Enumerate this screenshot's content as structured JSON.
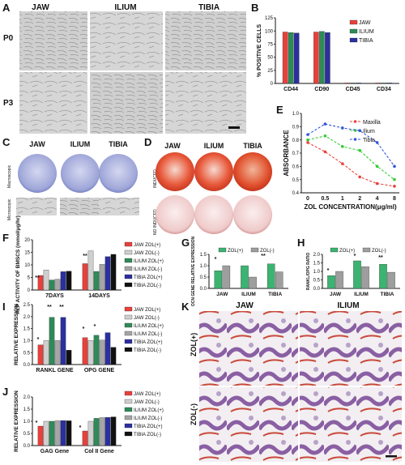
{
  "panels": {
    "A": {
      "label": "A",
      "cols": [
        "JAW",
        "ILIUM",
        "TIBIA"
      ],
      "rows": [
        "P0",
        "P3"
      ]
    },
    "B": {
      "label": "B"
    },
    "C": {
      "label": "C",
      "cols": [
        "JAW",
        "ILIUM",
        "TIBIA"
      ],
      "rows": [
        "Macroscopic",
        "Microscopic"
      ]
    },
    "D": {
      "label": "D",
      "cols": [
        "JAW",
        "ILIUM",
        "TIBIA"
      ],
      "rows": [
        "INDUCED",
        "NO INDUCED"
      ]
    },
    "E": {
      "label": "E"
    },
    "F": {
      "label": "F"
    },
    "G": {
      "label": "G"
    },
    "H": {
      "label": "H"
    },
    "I": {
      "label": "I"
    },
    "J": {
      "label": "J"
    },
    "K": {
      "label": "K",
      "cols": [
        "JAW",
        "ILIUM"
      ],
      "rows": [
        "ZOL(+)",
        "ZOL(-)"
      ]
    }
  },
  "colors": {
    "jaw_pos": "#e8413c",
    "jaw_neg": "#cfcfcf",
    "ilium_pos": "#2e8b57",
    "ilium_neg": "#a6a6a6",
    "tibia_pos": "#2b2fa0",
    "tibia_neg": "#111111",
    "zol_pos": "#3cb371",
    "zol_neg": "#9e9e9e",
    "maxilla": "#e8413c",
    "ilium": "#33cc33",
    "tibia": "#3355dd"
  },
  "chart_data": [
    {
      "panel": "B",
      "type": "bar",
      "categories": [
        "CD44",
        "CD90",
        "CD45",
        "CD34"
      ],
      "series": [
        {
          "name": "JAW",
          "values": [
            98,
            98,
            1,
            1
          ]
        },
        {
          "name": "ILIUM",
          "values": [
            97,
            99,
            1,
            1
          ]
        },
        {
          "name": "TIBIA",
          "values": [
            96,
            97,
            1,
            1
          ]
        }
      ],
      "ylabel": "% POSITIVE CELLS",
      "ylim": [
        0,
        125
      ],
      "yticks": [
        "0",
        "25",
        "50",
        "75",
        "100",
        "125"
      ]
    },
    {
      "panel": "E",
      "type": "line",
      "x": [
        "0",
        "0.5",
        "1",
        "2",
        "4",
        "8"
      ],
      "series": [
        {
          "name": "Maxilla",
          "values": [
            0.78,
            0.71,
            0.62,
            0.52,
            0.47,
            0.45
          ]
        },
        {
          "name": "Ilium",
          "values": [
            0.8,
            0.83,
            0.75,
            0.72,
            0.6,
            0.5
          ]
        },
        {
          "name": "Tibia",
          "values": [
            0.84,
            0.92,
            0.89,
            0.87,
            0.78,
            0.6
          ]
        }
      ],
      "xlabel": "ZOL CONCENTRATION(μg/ml)",
      "ylabel": "ABSORBANCE",
      "ylim": [
        0.4,
        1.0
      ],
      "yticks": [
        "0.4",
        "0.5",
        "0.6",
        "0.7",
        "0.8",
        "0.9",
        "1.0"
      ]
    },
    {
      "panel": "F",
      "type": "bar",
      "categories": [
        "7DAYS",
        "14DAYS"
      ],
      "series": [
        {
          "name": "JAW ZOL(+)",
          "values": [
            5.8,
            10.5
          ]
        },
        {
          "name": "JAW ZOL(-)",
          "values": [
            8.0,
            15.6
          ]
        },
        {
          "name": "ILIUM ZOL(+)",
          "values": [
            4.0,
            7.4
          ]
        },
        {
          "name": "ILIUM ZOL(-)",
          "values": [
            4.3,
            10.2
          ]
        },
        {
          "name": "TIBIA ZOL(+)",
          "values": [
            7.3,
            13.3
          ]
        },
        {
          "name": "TIBIA ZOL(-)",
          "values": [
            7.5,
            14.2
          ]
        }
      ],
      "ylabel": "ALP ACTIVITY OF BMSCS (mmol/μg/hr)",
      "ylim": [
        0,
        20
      ],
      "yticks": [
        "0",
        "5",
        "10",
        "15",
        "20"
      ]
    },
    {
      "panel": "G",
      "type": "bar",
      "categories": [
        "JAW",
        "ILIUM",
        "TIBIA"
      ],
      "series": [
        {
          "name": "ZOL(+)",
          "values": [
            0.78,
            1.0,
            1.08
          ]
        },
        {
          "name": "ZOL(-)",
          "values": [
            1.0,
            0.5,
            0.73
          ]
        }
      ],
      "ylabel": "OCN GENE RELATIVE EXPRESSION",
      "ylim": [
        0,
        1.5
      ],
      "yticks": [
        "0.0",
        "0.5",
        "1.0",
        "1.5"
      ]
    },
    {
      "panel": "H",
      "type": "bar",
      "categories": [
        "JAW",
        "ILIUM",
        "TIBIA"
      ],
      "series": [
        {
          "name": "ZOL(+)",
          "values": [
            0.75,
            1.62,
            1.42
          ]
        },
        {
          "name": "ZOL(-)",
          "values": [
            1.0,
            1.28,
            0.95
          ]
        }
      ],
      "ylabel": "RANKL/OPG RATIO",
      "ylim": [
        0,
        2.0
      ],
      "yticks": [
        "0.0",
        "0.5",
        "1.0",
        "1.5",
        "2.0"
      ]
    },
    {
      "panel": "I",
      "type": "bar",
      "categories": [
        "RANKL GENE",
        "OPG GENE"
      ],
      "series": [
        {
          "name": "JAW ZOL(+)",
          "values": [
            0.82,
            1.12
          ]
        },
        {
          "name": "JAW ZOL(-)",
          "values": [
            1.0,
            1.0
          ]
        },
        {
          "name": "ILIUM ZOL(+)",
          "values": [
            1.97,
            1.22
          ]
        },
        {
          "name": "ILIUM ZOL(-)",
          "values": [
            1.0,
            1.02
          ]
        },
        {
          "name": "TIBIA ZOL(+)",
          "values": [
            1.97,
            1.33
          ]
        },
        {
          "name": "TIBIA ZOL(-)",
          "values": [
            0.6,
            0.72
          ]
        }
      ],
      "ylabel": "RELATIVE EXPRESSION",
      "ylim": [
        0,
        2.5
      ],
      "yticks": [
        "0.0",
        "0.5",
        "1.0",
        "1.5",
        "2.0",
        "2.5"
      ]
    },
    {
      "panel": "J",
      "type": "bar",
      "categories": [
        "GAG Gene",
        "Col II Gene"
      ],
      "series": [
        {
          "name": "JAW ZOL(+)",
          "values": [
            0.8,
            0.6
          ]
        },
        {
          "name": "JAW ZOL(-)",
          "values": [
            1.0,
            1.0
          ]
        },
        {
          "name": "ILIUM ZOL(+)",
          "values": [
            1.0,
            1.12
          ]
        },
        {
          "name": "ILIUM ZOL(-)",
          "values": [
            1.02,
            1.15
          ]
        },
        {
          "name": "TIBIA ZOL(+)",
          "values": [
            1.03,
            1.16
          ]
        },
        {
          "name": "TIBIA ZOL(-)",
          "values": [
            1.02,
            1.18
          ]
        }
      ],
      "ylabel": "RELATIVE EXPRESSION",
      "ylim": [
        0,
        2.0
      ],
      "yticks": [
        "0.0",
        "0.5",
        "1.0",
        "1.5",
        "2.0"
      ]
    }
  ]
}
